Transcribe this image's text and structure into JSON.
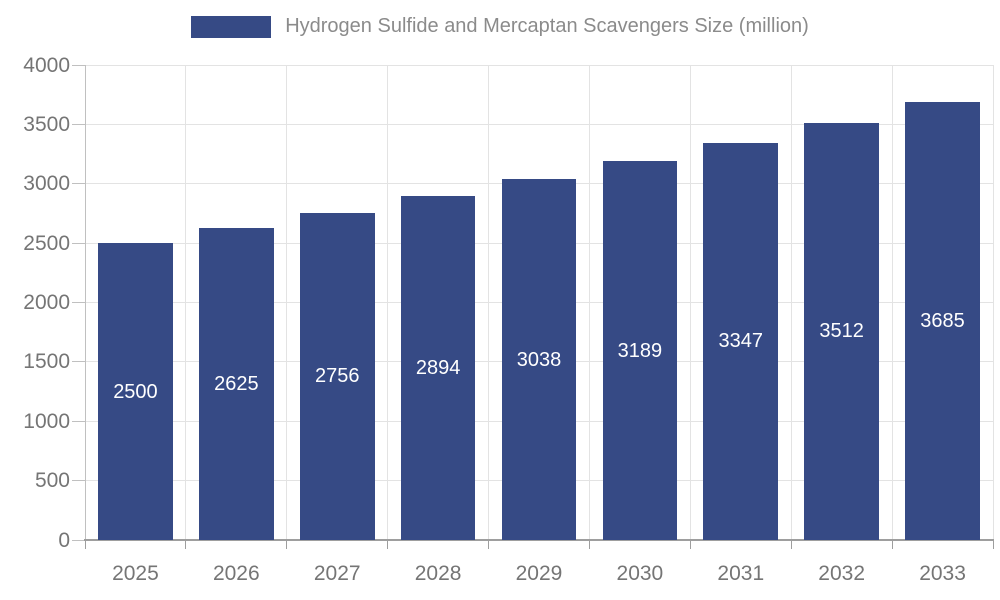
{
  "chart_data": {
    "type": "bar",
    "title": "Hydrogen Sulfide and Mercaptan Scavengers Size (million)",
    "categories": [
      "2025",
      "2026",
      "2027",
      "2028",
      "2029",
      "2030",
      "2031",
      "2032",
      "2033"
    ],
    "values": [
      2500,
      2625,
      2756,
      2894,
      3038,
      3189,
      3347,
      3512,
      3685
    ],
    "series_name": "Hydrogen Sulfide and Mercaptan Scavengers Size (million)",
    "xlabel": "",
    "ylabel": "",
    "ylim": [
      0,
      4000
    ],
    "ytick_interval": 500,
    "grid": true,
    "legend_position": "top",
    "value_labels": "inside-center",
    "colors": {
      "bar": "#364a85",
      "bar_label": "#ffffff",
      "title": "#8b8b8b",
      "axis_label": "#757575",
      "gridline": "#e3e3e3",
      "axis_line": "#9e9e9e"
    }
  }
}
